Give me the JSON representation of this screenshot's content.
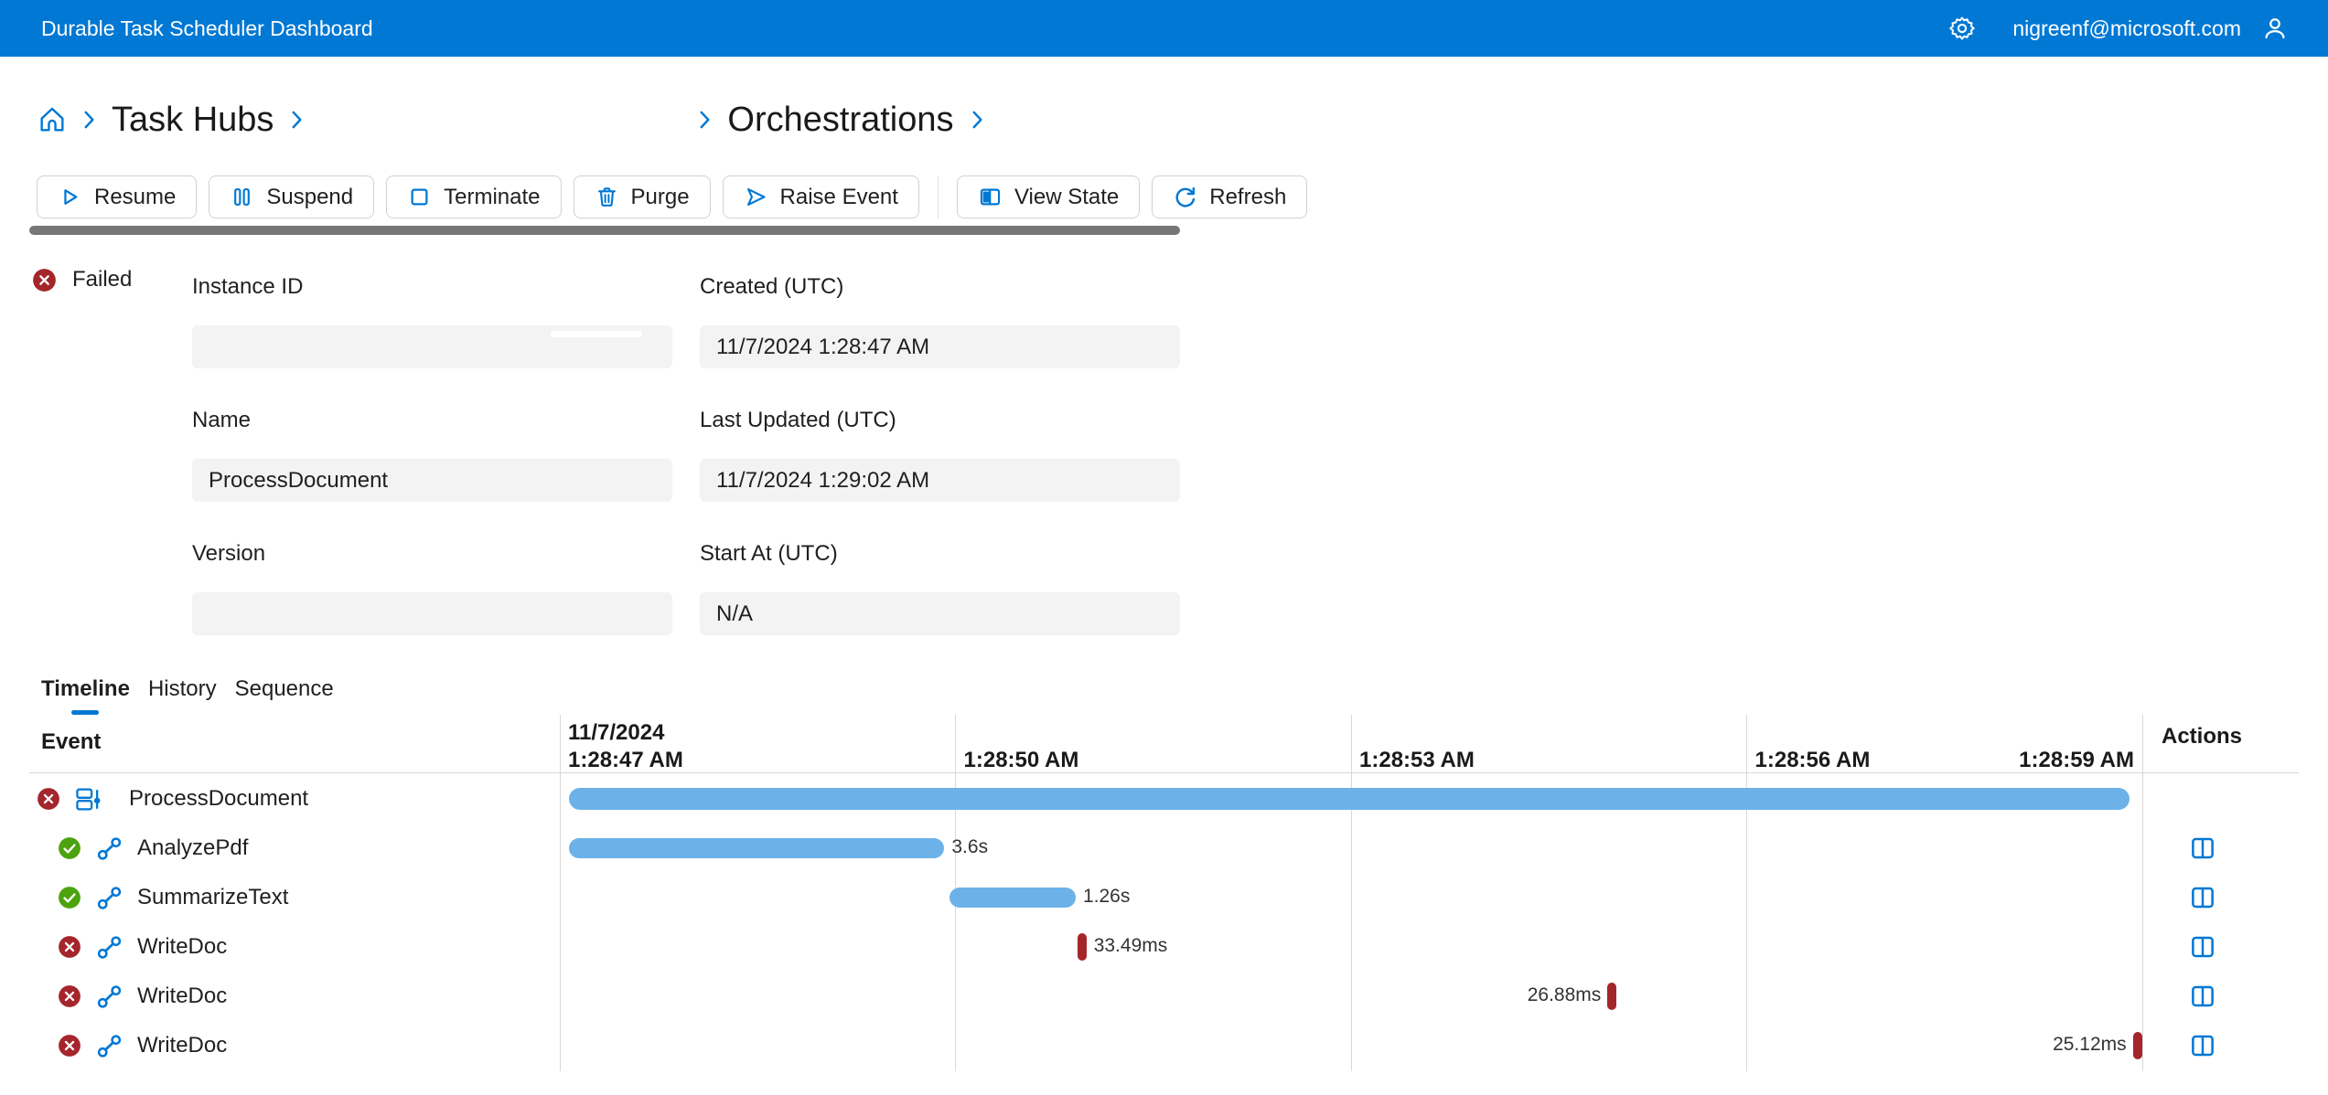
{
  "colors": {
    "accent": "#0078D4",
    "bar_blue": "#6CB2E8",
    "error": "#A4262C",
    "success": "#4CA30D",
    "grid": "#D8D8D8"
  },
  "topbar": {
    "title": "Durable Task Scheduler Dashboard",
    "email": "nigreenf@microsoft.com",
    "gear_icon": "gear-icon",
    "person_icon": "person-icon"
  },
  "breadcrumb": {
    "home_icon": "home-icon",
    "items": [
      "Task Hubs",
      "Orchestrations"
    ]
  },
  "toolbar": {
    "buttons": [
      {
        "label": "Resume",
        "icon": "play-icon",
        "group": 1
      },
      {
        "label": "Suspend",
        "icon": "pause-icon",
        "group": 1
      },
      {
        "label": "Terminate",
        "icon": "stop-icon",
        "group": 1
      },
      {
        "label": "Purge",
        "icon": "trash-icon",
        "group": 1
      },
      {
        "label": "Raise Event",
        "icon": "send-icon",
        "group": 1
      },
      {
        "label": "View State",
        "icon": "split-panel-icon",
        "group": 2
      },
      {
        "label": "Refresh",
        "icon": "refresh-icon",
        "group": 2
      }
    ]
  },
  "status": {
    "label": "Failed",
    "icon": "error-icon"
  },
  "details": {
    "columns": [
      [
        {
          "label": "Instance ID",
          "value": "",
          "redacted": true
        },
        {
          "label": "Name",
          "value": "ProcessDocument"
        },
        {
          "label": "Version",
          "value": ""
        }
      ],
      [
        {
          "label": "Created (UTC)",
          "value": "11/7/2024 1:28:47 AM"
        },
        {
          "label": "Last Updated (UTC)",
          "value": "11/7/2024 1:29:02 AM"
        },
        {
          "label": "Start At (UTC)",
          "value": "N/A"
        }
      ]
    ]
  },
  "tabs": {
    "items": [
      "Timeline",
      "History",
      "Sequence"
    ],
    "active": "Timeline"
  },
  "table": {
    "event_header": "Event",
    "actions_header": "Actions"
  },
  "chart_data": {
    "type": "timeline-gantt",
    "axis_ticks": [
      {
        "date_label": "11/7/2024",
        "label": "1:28:47 AM",
        "pos_pct": 0
      },
      {
        "label": "1:28:50 AM",
        "pos_pct": 25
      },
      {
        "label": "1:28:53 AM",
        "pos_pct": 50
      },
      {
        "label": "1:28:56 AM",
        "pos_pct": 75
      },
      {
        "label": "1:28:59 AM",
        "pos_pct": 100,
        "align": "right"
      }
    ],
    "rows": [
      {
        "name": "ProcessDocument",
        "status": "failed",
        "kind": "orchestration",
        "bar": {
          "start_pct": 0.6,
          "width_pct": 98.6,
          "tick": false
        },
        "duration_label": "",
        "has_action": false
      },
      {
        "name": "AnalyzePdf",
        "status": "succeeded",
        "kind": "activity",
        "bar": {
          "start_pct": 0.6,
          "width_pct": 23.7,
          "tick": false
        },
        "duration_label": "3.6s",
        "label_side": "right",
        "has_action": true
      },
      {
        "name": "SummarizeText",
        "status": "succeeded",
        "kind": "activity",
        "bar": {
          "start_pct": 24.6,
          "width_pct": 8.0,
          "tick": false
        },
        "duration_label": "1.26s",
        "label_side": "right",
        "has_action": true
      },
      {
        "name": "WriteDoc",
        "status": "failed",
        "kind": "activity",
        "bar": {
          "start_pct": 32.7,
          "width_pct": 0.58,
          "tick": true
        },
        "duration_label": "33.49ms",
        "label_side": "right",
        "has_action": true
      },
      {
        "name": "WriteDoc",
        "status": "failed",
        "kind": "activity",
        "bar": {
          "start_pct": 66.2,
          "width_pct": 0.58,
          "tick": true
        },
        "duration_label": "26.88ms",
        "label_side": "left",
        "has_action": true
      },
      {
        "name": "WriteDoc",
        "status": "failed",
        "kind": "activity",
        "bar": {
          "start_pct": 99.4,
          "width_pct": 0.58,
          "tick": true
        },
        "duration_label": "25.12ms",
        "label_side": "left",
        "has_action": true
      }
    ]
  }
}
